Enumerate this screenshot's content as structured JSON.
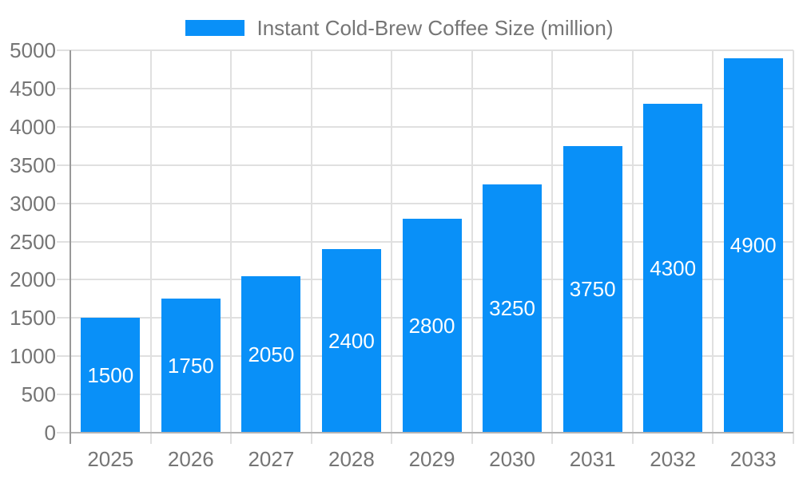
{
  "chart_data": {
    "type": "bar",
    "title": "Instant Cold-Brew Coffee Size (million)",
    "categories": [
      "2025",
      "2026",
      "2027",
      "2028",
      "2029",
      "2030",
      "2031",
      "2032",
      "2033"
    ],
    "series": [
      {
        "name": "Instant Cold-Brew Coffee Size (million)",
        "values": [
          1500,
          1750,
          2050,
          2400,
          2800,
          3250,
          3750,
          4300,
          4900
        ]
      }
    ],
    "bar_value_labels": [
      "1500",
      "1750",
      "2050",
      "2400",
      "2800",
      "3250",
      "3750",
      "4300",
      "4900"
    ],
    "xlabel": "",
    "ylabel": "",
    "ylim": [
      0,
      5000
    ],
    "yticks": [
      0,
      500,
      1000,
      1500,
      2000,
      2500,
      3000,
      3500,
      4000,
      4500,
      5000
    ],
    "grid": true,
    "legend_position": "top",
    "colors": {
      "bar": "#0990f8",
      "grid": "#e0e0e0",
      "y_axis_line": "#999999",
      "x_axis_line": "#b2b2b2",
      "tick_label": "#757575",
      "bar_label": "#ffffff",
      "background": "#ffffff"
    }
  }
}
